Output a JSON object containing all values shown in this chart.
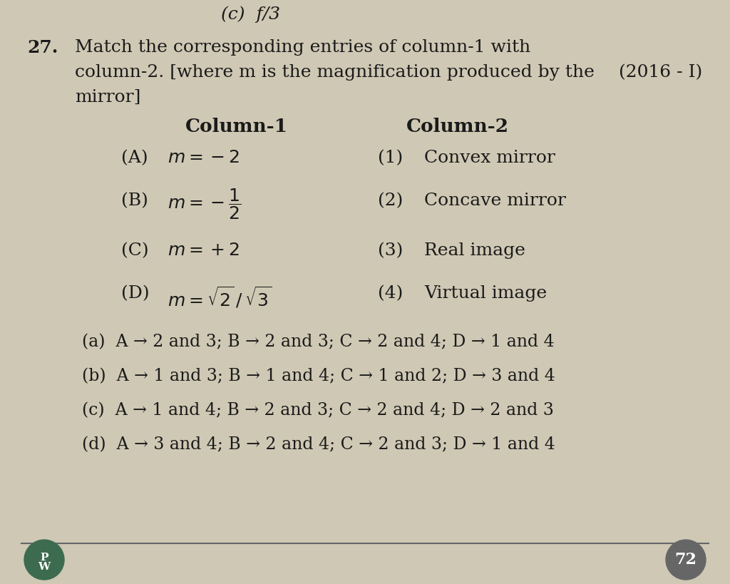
{
  "bg_color": "#cfc8b4",
  "text_color": "#1a1a1a",
  "top_text": "(c)  f/3",
  "question_num": "27.",
  "q_line1": "Match the corresponding entries of column-1 with",
  "q_line2": "column-2. [where m is the magnification produced by the",
  "q_line3": "mirror]",
  "year_tag": "(2016 - I)",
  "col1_header": "Column-1",
  "col2_header": "Column-2",
  "col2_items_plain": [
    "Convex mirror",
    "Concave mirror",
    "Real image",
    "Virtual image"
  ],
  "col2_nums": [
    "(1)",
    "(2)",
    "(3)",
    "(4)"
  ],
  "col1_labels": [
    "(A)",
    "(B)",
    "(C)",
    "(D)"
  ],
  "options": [
    "(a)  A → 2 and 3; B → 2 and 3; C → 2 and 4; D → 1 and 4",
    "(b)  A → 1 and 3; B → 1 and 4; C → 1 and 2; D → 3 and 4",
    "(c)  A → 1 and 4; B → 2 and 3; C → 2 and 4; D → 2 and 3",
    "(d)  A → 3 and 4; B → 2 and 4; C → 2 and 3; D → 1 and 4"
  ],
  "footer_line_color": "#666666",
  "footer_page_num": "72",
  "footer_page_bg": "#666666",
  "footer_page_text_color": "#ffffff",
  "logo_circle_color": "#3d6b4f",
  "font_size_main": 18,
  "font_size_header": 19,
  "font_size_options": 17
}
